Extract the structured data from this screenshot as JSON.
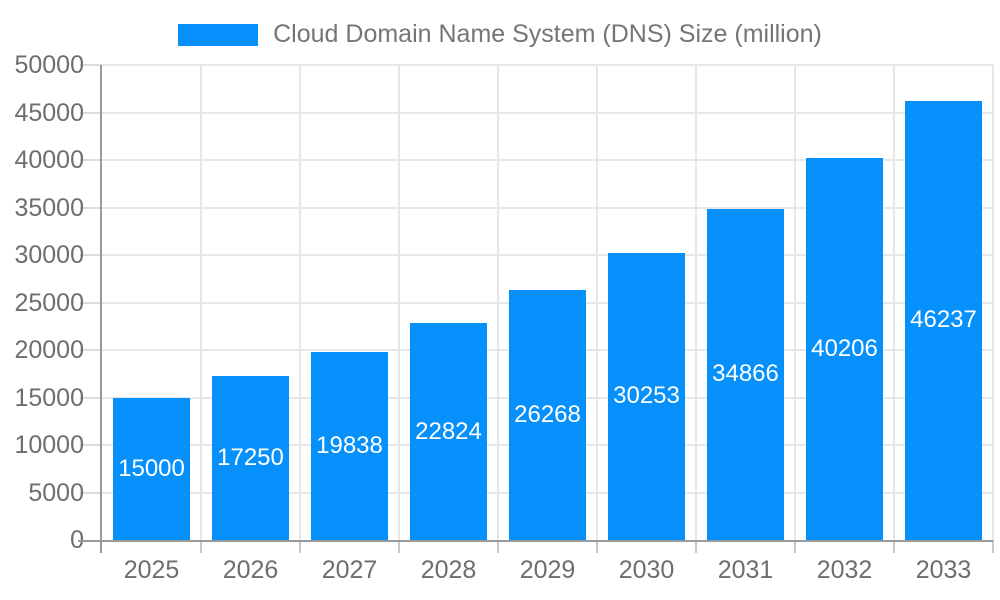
{
  "chart_data": {
    "type": "bar",
    "title": "",
    "legend_label": "Cloud Domain Name System (DNS) Size (million)",
    "legend_position": "top",
    "categories": [
      "2025",
      "2026",
      "2027",
      "2028",
      "2029",
      "2030",
      "2031",
      "2032",
      "2033"
    ],
    "series": [
      {
        "name": "Cloud Domain Name System (DNS) Size (million)",
        "values": [
          15000,
          17250,
          19838,
          22824,
          26268,
          30253,
          34866,
          40206,
          46237
        ]
      }
    ],
    "value_labels": [
      "15000",
      "17250",
      "19838",
      "22824",
      "26268",
      "30253",
      "34866",
      "40206",
      "46237"
    ],
    "xlabel": "",
    "ylabel": "",
    "ylim": [
      0,
      50000
    ],
    "ytick_step": 5000,
    "yticks": [
      0,
      5000,
      10000,
      15000,
      20000,
      25000,
      30000,
      35000,
      40000,
      45000,
      50000
    ],
    "grid": true,
    "colors": {
      "bar": "#0590FB",
      "bar_value_label": "#FFFFFF",
      "axis_line": "#9A9A9A",
      "gridline": "#E7E7E7",
      "tick": "#DCDCDC",
      "category_tick": "#C8C8C8",
      "axis_label": "#6E6E6E",
      "legend_text": "#757575",
      "background": "#FFFFFF"
    }
  }
}
